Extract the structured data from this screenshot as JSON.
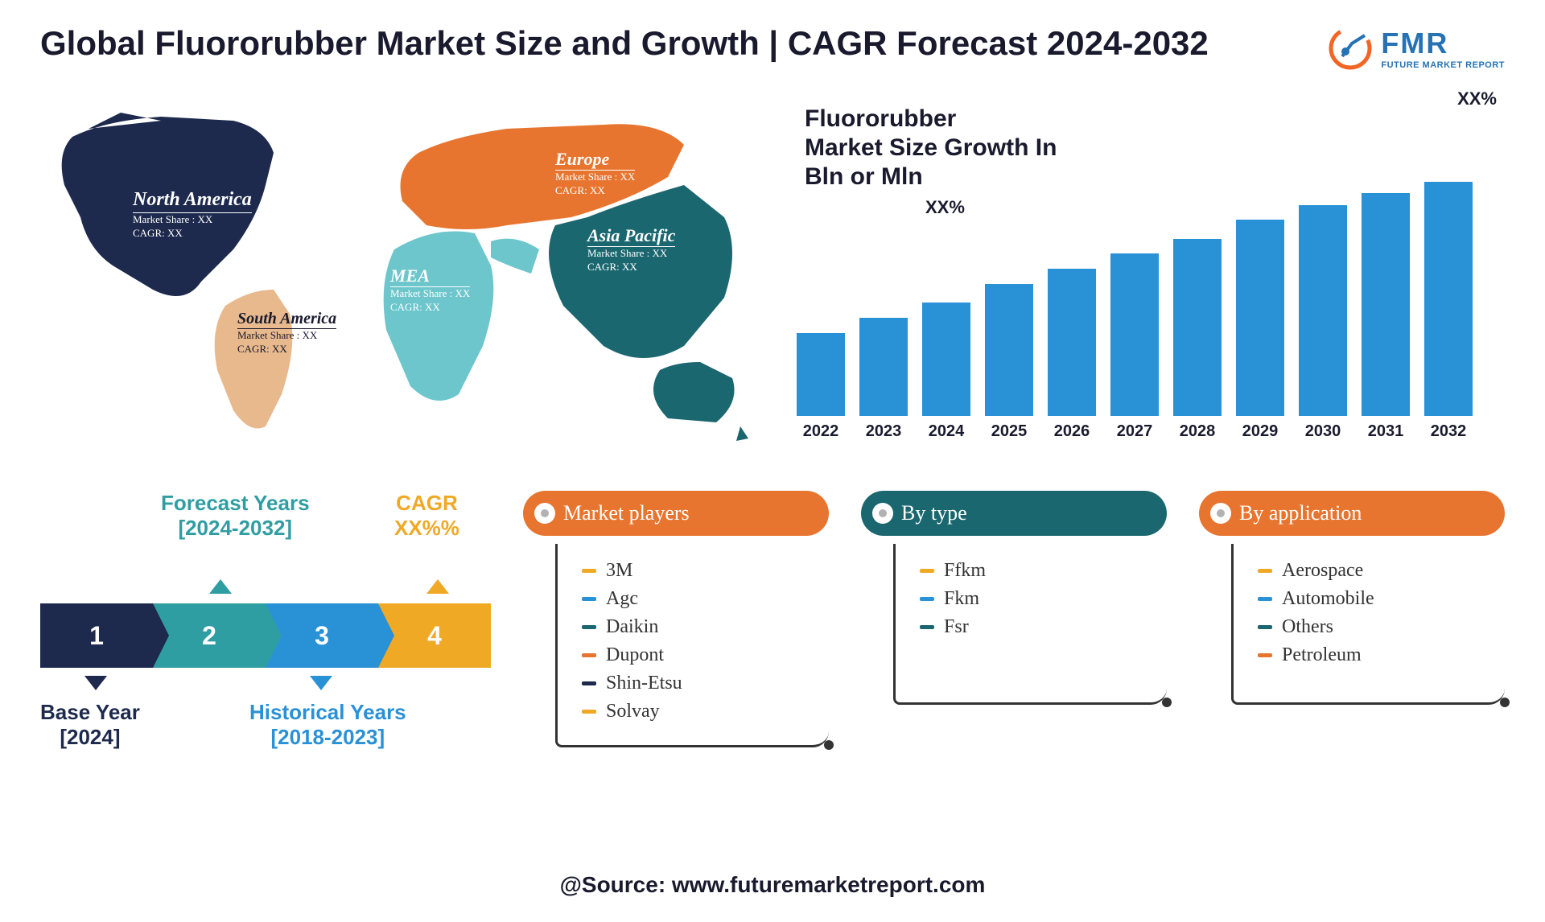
{
  "title": "Global Fluororubber  Market Size and Growth | CAGR Forecast 2024-2032",
  "logo": {
    "brand": "FMR",
    "tagline": "FUTURE MARKET REPORT"
  },
  "colors": {
    "navy": "#1d2a4d",
    "orange": "#e8752f",
    "teal": "#2f9ea3",
    "cyan": "#6cc6cc",
    "tan": "#e8b98c",
    "blue_bar": "#2991d6",
    "dark_teal": "#1b6770",
    "step1": "#1d2a4d",
    "step2": "#2f9ea3",
    "step3": "#2991d6",
    "step4": "#f0a925",
    "logo_orange": "#f26522",
    "logo_blue": "#2572b4"
  },
  "map_regions": [
    {
      "name": "North America",
      "share": "Market Share : XX",
      "cagr": "CAGR: XX",
      "color": "#1d2a4d",
      "text_color": "light"
    },
    {
      "name": "South America",
      "share": "Market Share : XX",
      "cagr": "CAGR: XX",
      "color": "#e8b98c",
      "text_color": "dark"
    },
    {
      "name": "Europe",
      "share": "Market Share : XX",
      "cagr": "CAGR: XX",
      "color": "#e8752f",
      "text_color": "light"
    },
    {
      "name": "MEA",
      "share": "Market Share : XX",
      "cagr": "CAGR: XX",
      "color": "#6cc6cc",
      "text_color": "light"
    },
    {
      "name": "Asia Pacific",
      "share": "Market Share : XX",
      "cagr": "CAGR: XX",
      "color": "#1b6770",
      "text_color": "light"
    }
  ],
  "chart": {
    "title_line1": "Fluororubber",
    "title_line2": "Market Size Growth In",
    "title_line3": "Bln or Mln",
    "type": "bar",
    "years": [
      "2022",
      "2023",
      "2024",
      "2025",
      "2026",
      "2027",
      "2028",
      "2029",
      "2030",
      "2031",
      "2032"
    ],
    "values": [
      110,
      130,
      150,
      175,
      195,
      215,
      235,
      260,
      280,
      295,
      310
    ],
    "ylim": [
      0,
      320
    ],
    "bar_color": "#2991d6",
    "callout_2024": "XX%",
    "callout_2032": "XX%",
    "label_fontsize": 20,
    "label_fontweight": "bold"
  },
  "timeline": {
    "base_year": {
      "label": "Base Year",
      "value": "[2024]",
      "color": "#1d2a4d"
    },
    "forecast_years": {
      "label": "Forecast Years",
      "value": "[2024-2032]",
      "color": "#2f9ea3"
    },
    "historical_years": {
      "label": "Historical Years",
      "value": "[2018-2023]",
      "color": "#2991d6"
    },
    "cagr": {
      "label": "CAGR",
      "value": "XX%%",
      "color": "#f0a925"
    },
    "steps": [
      "1",
      "2",
      "3",
      "4"
    ]
  },
  "categories": [
    {
      "header": "Market players",
      "header_color": "#e8752f",
      "items": [
        {
          "label": "3M",
          "bullet": "#f0a925"
        },
        {
          "label": "Agc",
          "bullet": "#2991d6"
        },
        {
          "label": "Daikin",
          "bullet": "#1b6770"
        },
        {
          "label": "Dupont",
          "bullet": "#e8752f"
        },
        {
          "label": "Shin-Etsu",
          "bullet": "#1d2a4d"
        },
        {
          "label": "Solvay",
          "bullet": "#f0a925"
        }
      ]
    },
    {
      "header": "By type",
      "header_color": "#1b6770",
      "items": [
        {
          "label": "Ffkm",
          "bullet": "#f0a925"
        },
        {
          "label": "Fkm",
          "bullet": "#2991d6"
        },
        {
          "label": "Fsr",
          "bullet": "#1b6770"
        }
      ]
    },
    {
      "header": "By application",
      "header_color": "#e8752f",
      "items": [
        {
          "label": "Aerospace",
          "bullet": "#f0a925"
        },
        {
          "label": "Automobile",
          "bullet": "#2991d6"
        },
        {
          "label": "Others",
          "bullet": "#1b6770"
        },
        {
          "label": "Petroleum",
          "bullet": "#e8752f"
        }
      ]
    }
  ],
  "source": "@Source: www.futuremarketreport.com"
}
